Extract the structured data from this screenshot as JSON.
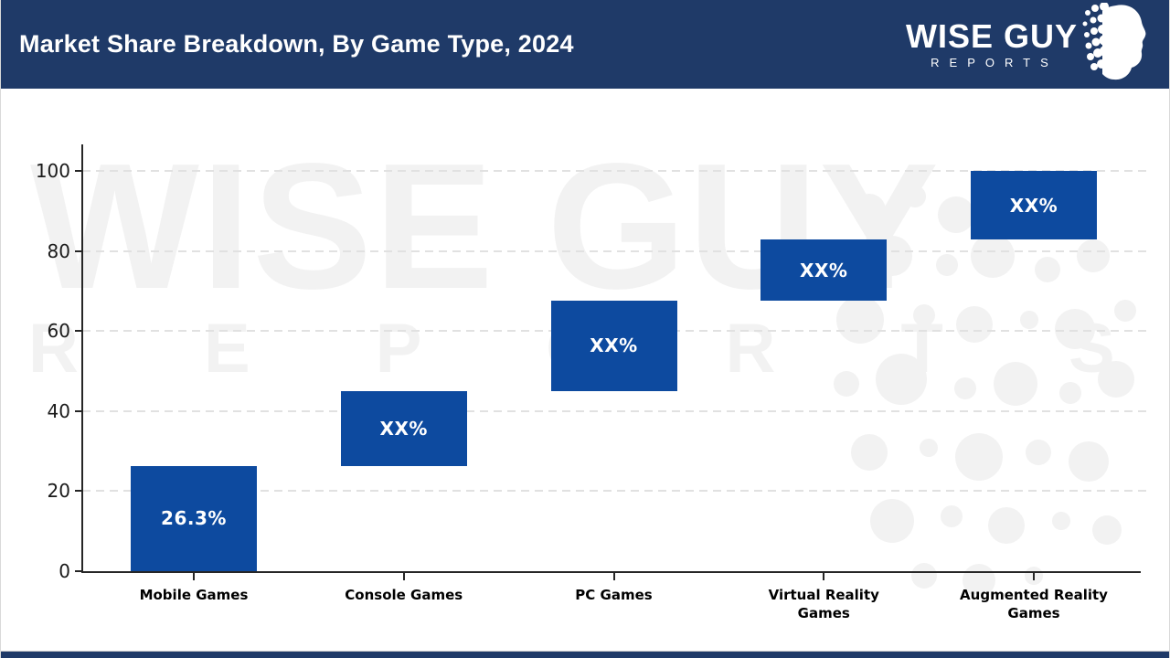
{
  "page": {
    "background": "#ffffff",
    "accent_navy": "#1f3a68"
  },
  "header": {
    "title": "Market Share Breakdown, By Game Type, 2024",
    "logo_line1": "WISE GUY",
    "logo_line2": "REPORTS"
  },
  "watermark": {
    "line1": "WISE GUY",
    "line2": "R E P O R T S"
  },
  "chart_data": {
    "type": "bar",
    "subtype": "floating-waterfall",
    "title": "Market Share Breakdown, By Game Type, 2024",
    "xlabel": "",
    "ylabel": "",
    "ylim": [
      0,
      100
    ],
    "yticks": [
      0,
      20,
      40,
      60,
      80,
      100
    ],
    "grid": "horizontal-dashed",
    "legend": "none",
    "bar_color": "#0d4a9f",
    "bar_label_color": "#ffffff",
    "categories": [
      "Mobile Games",
      "Console Games",
      "PC Games",
      "Virtual Reality Games",
      "Augmented Reality Games"
    ],
    "series": [
      {
        "name": "Market Share",
        "segments": [
          {
            "category": "Mobile Games",
            "start": 0,
            "end": 26.3,
            "label": "26.3%"
          },
          {
            "category": "Console Games",
            "start": 26.3,
            "end": 45.0,
            "label": "XX%"
          },
          {
            "category": "PC Games",
            "start": 45.0,
            "end": 67.6,
            "label": "XX%"
          },
          {
            "category": "Virtual Reality Games",
            "start": 67.6,
            "end": 82.8,
            "label": "XX%"
          },
          {
            "category": "Augmented Reality Games",
            "start": 82.8,
            "end": 100,
            "label": "XX%"
          }
        ]
      }
    ]
  }
}
